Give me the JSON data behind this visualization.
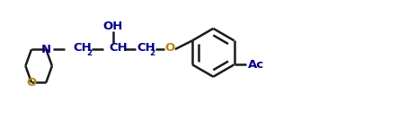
{
  "background_color": "#ffffff",
  "line_color": "#1a1a1a",
  "text_color_blue": "#00008b",
  "text_color_orange": "#b8860b",
  "line_width": 1.8,
  "font_size_main": 9.5,
  "font_size_sub": 6.5,
  "xlim": [
    0,
    10
  ],
  "ylim": [
    0,
    3
  ]
}
